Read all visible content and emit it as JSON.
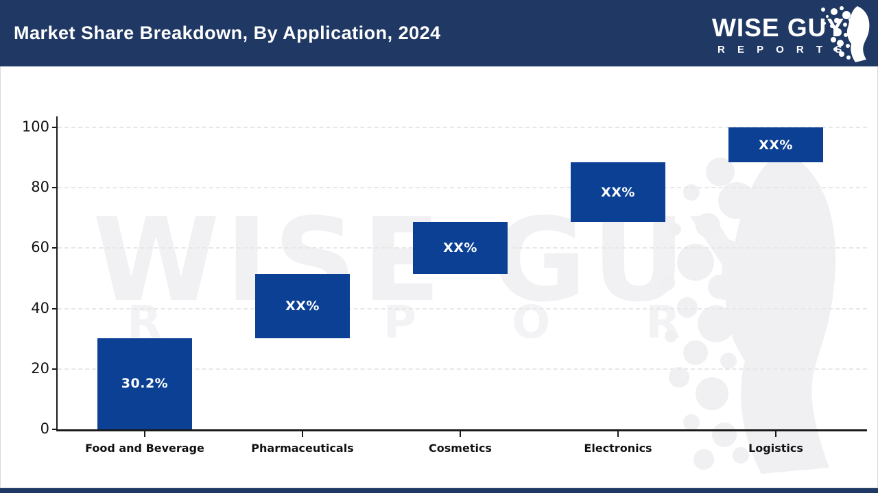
{
  "header": {
    "title": "Market Share Breakdown, By Application, 2024",
    "bg_color": "#1f3864",
    "logo": {
      "line1": "WISE GUY",
      "line2": "R E P O R T S"
    }
  },
  "watermark": {
    "line1": "WISE GUY",
    "line2": "R E P O R T S"
  },
  "chart_data": {
    "type": "bar",
    "subtype": "waterfall-floating-segments",
    "title": "Market Share Breakdown, By Application, 2024",
    "categories": [
      "Food and Beverage",
      "Pharmaceuticals",
      "Cosmetics",
      "Electronics",
      "Logistics"
    ],
    "segments": [
      {
        "category": "Food and Beverage",
        "start": 0,
        "end": 30.2,
        "label": "30.2%"
      },
      {
        "category": "Pharmaceuticals",
        "start": 30.2,
        "end": 51.4,
        "label": "XX%"
      },
      {
        "category": "Cosmetics",
        "start": 51.4,
        "end": 68.6,
        "label": "XX%"
      },
      {
        "category": "Electronics",
        "start": 68.6,
        "end": 88.4,
        "label": "XX%"
      },
      {
        "category": "Logistics",
        "start": 88.4,
        "end": 100,
        "label": "XX%"
      }
    ],
    "bar_color": "#0b4094",
    "ylim": [
      0,
      100
    ],
    "yticks": [
      0,
      20,
      40,
      60,
      80,
      100
    ],
    "xlabel": "",
    "ylabel": "",
    "grid": "horizontal-dashed",
    "legend": null
  },
  "footer": {
    "bg_color": "#1f3864"
  }
}
